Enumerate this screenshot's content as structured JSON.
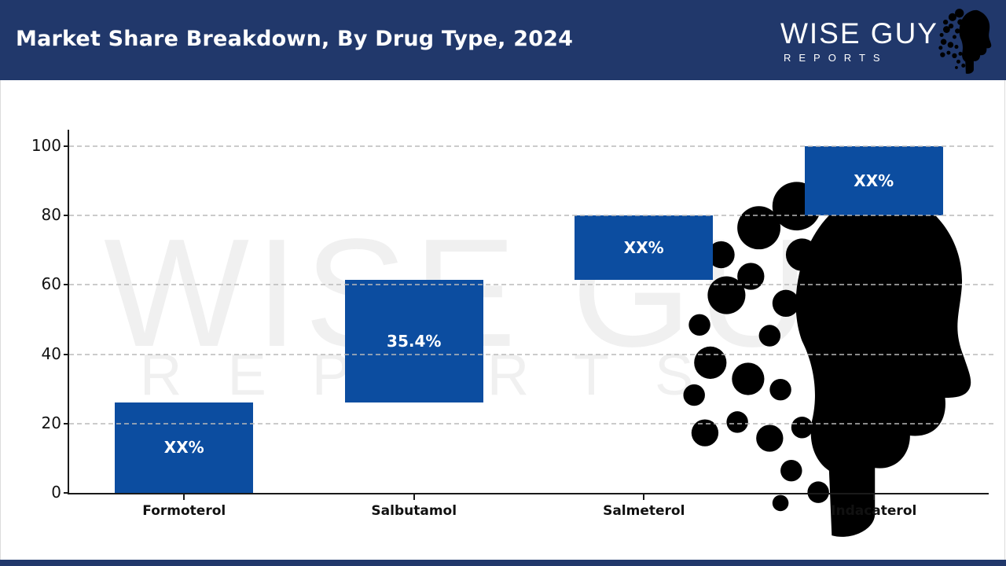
{
  "header": {
    "title": "Market Share Breakdown, By Drug Type, 2024"
  },
  "logo": {
    "line1": "WISE GUY",
    "line2": "REPORTS"
  },
  "watermark": {
    "line1": "WISE GUY",
    "line2": "REPORTS"
  },
  "colors": {
    "navy": "#21386B",
    "bar_blue": "#0C4DA0",
    "grid": "#BBBBBB",
    "watermark": "#F0F0F0",
    "axis": "#1A1A1A",
    "bar_label": "#FFFFFF"
  },
  "chart_data": {
    "type": "bar",
    "subtype": "floating-waterfall",
    "title": "Market Share Breakdown, By Drug Type, 2024",
    "xlabel": "",
    "ylabel": "",
    "categories": [
      "Formoterol",
      "Salbutamol",
      "Salmeterol",
      "Indacaterol"
    ],
    "segments": [
      {
        "category": "Formoterol",
        "start": 0,
        "end": 26.1,
        "value_label": "XX%"
      },
      {
        "category": "Salbutamol",
        "start": 26.1,
        "end": 61.5,
        "value_label": "35.4%"
      },
      {
        "category": "Salmeterol",
        "start": 61.5,
        "end": 80.0,
        "value_label": "XX%"
      },
      {
        "category": "Indacaterol",
        "start": 80.0,
        "end": 100.0,
        "value_label": "XX%"
      }
    ],
    "ylim": [
      0,
      100
    ],
    "yticks": [
      0,
      20,
      40,
      60,
      80,
      100
    ],
    "grid": "horizontal-dashed",
    "legend": "none"
  }
}
